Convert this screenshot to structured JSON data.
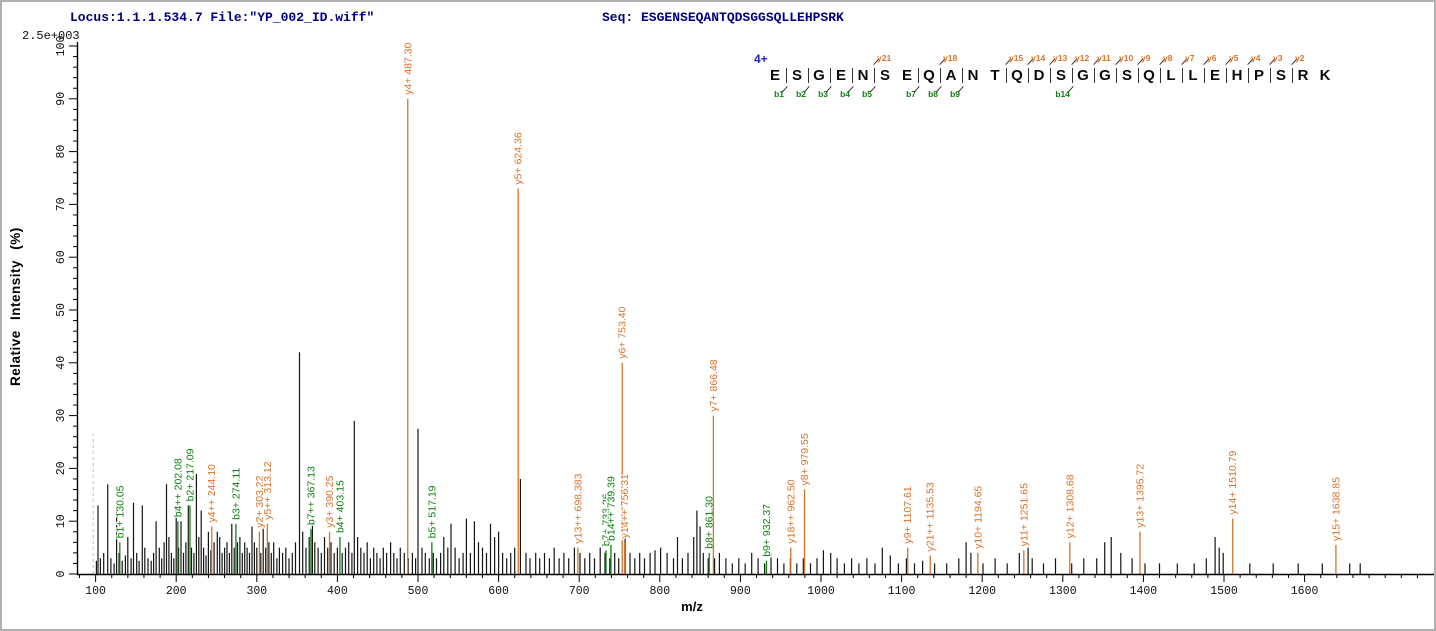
{
  "header": {
    "locus_file": "Locus:1.1.1.534.7 File:\"YP_002_ID.wiff\"",
    "seq": "Seq: ESGENSEQANTQDSGGSQLLEHPSRK",
    "max_intensity": "2.5e+003"
  },
  "colors": {
    "b_series": "#0f8012",
    "y_series": "#d9732b",
    "noise": "#141414",
    "header_text": "#000080",
    "charge_text": "#2424cc",
    "axis": "#000000",
    "dashed_marker": "#bcbcbc"
  },
  "sequence_panel": {
    "charge_label": "4+",
    "residues": [
      "E",
      "S",
      "G",
      "E",
      "N",
      "S",
      "E",
      "Q",
      "A",
      "N",
      "T",
      "Q",
      "D",
      "S",
      "G",
      "G",
      "S",
      "Q",
      "L",
      "L",
      "E",
      "H",
      "P",
      "S",
      "R",
      "K"
    ],
    "boundaries": [
      {
        "after": 1,
        "b": "b1"
      },
      {
        "after": 2,
        "b": "b2"
      },
      {
        "after": 3,
        "b": "b3"
      },
      {
        "after": 4,
        "b": "b4"
      },
      {
        "after": 5,
        "b": "b5",
        "y": "y21"
      },
      {
        "after": 7,
        "b": "b7"
      },
      {
        "after": 8,
        "b": "b8",
        "y": "y18"
      },
      {
        "after": 9,
        "b": "b9"
      },
      {
        "after": 11,
        "y": "y15"
      },
      {
        "after": 12,
        "y": "y14"
      },
      {
        "after": 13,
        "y": "y13"
      },
      {
        "after": 14,
        "b": "b14",
        "y": "y12"
      },
      {
        "after": 15,
        "y": "y11"
      },
      {
        "after": 16,
        "y": "y10"
      },
      {
        "after": 17,
        "y": "y9"
      },
      {
        "after": 18,
        "y": "y8"
      },
      {
        "after": 19,
        "y": "y7"
      },
      {
        "after": 20,
        "y": "y6"
      },
      {
        "after": 21,
        "y": "y5"
      },
      {
        "after": 22,
        "y": "y4"
      },
      {
        "after": 23,
        "y": "y3"
      },
      {
        "after": 24,
        "y": "y2"
      }
    ]
  },
  "chart_data": {
    "type": "bar",
    "kind": "ms2-fragment-spectrum",
    "title": "",
    "xlabel": "m/z",
    "ylabel": "Relative Intensity (%)",
    "xlim": [
      77,
      1758
    ],
    "ylim": [
      0,
      100
    ],
    "x_major_ticks": [
      100,
      200,
      300,
      400,
      500,
      600,
      700,
      800,
      900,
      1000,
      1100,
      1200,
      1300,
      1400,
      1500,
      1600
    ],
    "x_minor_step": 20,
    "y_major_ticks": [
      0,
      10,
      20,
      30,
      40,
      50,
      60,
      70,
      80,
      90,
      100
    ],
    "y_minor_step": 2,
    "grid": false,
    "legend": "none",
    "dashed_marker": {
      "mz": 97,
      "intensity": 26.5
    },
    "labeled_peaks": [
      {
        "label": "b1+ 130.05",
        "mz": 130.05,
        "intensity": 6,
        "series": "b"
      },
      {
        "label": "b4++ 202.08",
        "mz": 202.08,
        "intensity": 10,
        "series": "b"
      },
      {
        "label": "b2+ 217.09",
        "mz": 217.09,
        "intensity": 13,
        "series": "b"
      },
      {
        "label": "y4++ 244.10",
        "mz": 244.1,
        "intensity": 9,
        "series": "y"
      },
      {
        "label": "b3+ 274.11",
        "mz": 274.11,
        "intensity": 9.5,
        "series": "b"
      },
      {
        "label": "y2+ 303.22",
        "mz": 303.22,
        "intensity": 8,
        "series": "y"
      },
      {
        "label": "y5++ 313.12",
        "mz": 313.12,
        "intensity": 9.5,
        "series": "y"
      },
      {
        "label": "b7++ 367.13",
        "mz": 367.13,
        "intensity": 8.5,
        "series": "b"
      },
      {
        "label": "y3+ 390.25",
        "mz": 390.25,
        "intensity": 8,
        "series": "y"
      },
      {
        "label": "b4+ 403.15",
        "mz": 403.15,
        "intensity": 7,
        "series": "b"
      },
      {
        "label": "y4+ 487.30",
        "mz": 487.3,
        "intensity": 90,
        "series": "y"
      },
      {
        "label": "b5+ 517.19",
        "mz": 517.19,
        "intensity": 6,
        "series": "b"
      },
      {
        "label": "y5+ 624.36",
        "mz": 624.36,
        "intensity": 73,
        "series": "y"
      },
      {
        "label": "y13++ 698.383",
        "mz": 698.383,
        "intensity": 5,
        "series": "y"
      },
      {
        "label": "b7+ 733.26",
        "mz": 733.26,
        "intensity": 4.5,
        "series": "b"
      },
      {
        "label": "b14++ 739.39",
        "mz": 739.39,
        "intensity": 5.5,
        "series": "b"
      },
      {
        "label": "y6+ 753.40",
        "mz": 753.4,
        "intensity": 40,
        "series": "y"
      },
      {
        "label": "y14++ 756.31",
        "mz": 756.31,
        "intensity": 6,
        "series": "y"
      },
      {
        "label": "b8+ 861.30",
        "mz": 861.3,
        "intensity": 4,
        "series": "b"
      },
      {
        "label": "y7+ 866.48",
        "mz": 866.48,
        "intensity": 30,
        "series": "y"
      },
      {
        "label": "b9+ 932.37",
        "mz": 932.37,
        "intensity": 2.5,
        "series": "b"
      },
      {
        "label": "y18++ 962.50",
        "mz": 962.5,
        "intensity": 5,
        "series": "y"
      },
      {
        "label": "y8+ 979.55",
        "mz": 979.55,
        "intensity": 16,
        "series": "y"
      },
      {
        "label": "y9+ 1107.61",
        "mz": 1107.61,
        "intensity": 5,
        "series": "y"
      },
      {
        "label": "y21++ 1135.53",
        "mz": 1135.53,
        "intensity": 3.5,
        "series": "y"
      },
      {
        "label": "y10+ 1194.65",
        "mz": 1194.65,
        "intensity": 4,
        "series": "y"
      },
      {
        "label": "y11+ 1251.65",
        "mz": 1251.65,
        "intensity": 4.5,
        "series": "y"
      },
      {
        "label": "y12+ 1308.68",
        "mz": 1308.68,
        "intensity": 6,
        "series": "y"
      },
      {
        "label": "y13+ 1395.72",
        "mz": 1395.72,
        "intensity": 8,
        "series": "y"
      },
      {
        "label": "y14+ 1510.79",
        "mz": 1510.79,
        "intensity": 10.5,
        "series": "y"
      },
      {
        "label": "y15+ 1638.85",
        "mz": 1638.85,
        "intensity": 5.5,
        "series": "y"
      }
    ],
    "unlabeled_peaks": [
      [
        101,
        2.5
      ],
      [
        103,
        13
      ],
      [
        106,
        3
      ],
      [
        110,
        4
      ],
      [
        115,
        17
      ],
      [
        119,
        3
      ],
      [
        123,
        2
      ],
      [
        126,
        13
      ],
      [
        129,
        4
      ],
      [
        133,
        2.5
      ],
      [
        137,
        3.5
      ],
      [
        140,
        7
      ],
      [
        144,
        3
      ],
      [
        147,
        13.5
      ],
      [
        151,
        4
      ],
      [
        154,
        2.5
      ],
      [
        158,
        13
      ],
      [
        161,
        5
      ],
      [
        165,
        3
      ],
      [
        169,
        2.5
      ],
      [
        172,
        4
      ],
      [
        175,
        10
      ],
      [
        179,
        5
      ],
      [
        182,
        3
      ],
      [
        185,
        6
      ],
      [
        188,
        17
      ],
      [
        191,
        7
      ],
      [
        194,
        4
      ],
      [
        197,
        3
      ],
      [
        200,
        13
      ],
      [
        203,
        5
      ],
      [
        206,
        10
      ],
      [
        209,
        4
      ],
      [
        212,
        6
      ],
      [
        215,
        13
      ],
      [
        219,
        5
      ],
      [
        222,
        4
      ],
      [
        225,
        19
      ],
      [
        228,
        7
      ],
      [
        231,
        12
      ],
      [
        234,
        5
      ],
      [
        237,
        3.5
      ],
      [
        240,
        8
      ],
      [
        243,
        4.5
      ],
      [
        247,
        6
      ],
      [
        251,
        8
      ],
      [
        254,
        7
      ],
      [
        257,
        4
      ],
      [
        260,
        5
      ],
      [
        263,
        6
      ],
      [
        266,
        4
      ],
      [
        269,
        9.5
      ],
      [
        272,
        5
      ],
      [
        276,
        6
      ],
      [
        279,
        7
      ],
      [
        282,
        4
      ],
      [
        285,
        6
      ],
      [
        288,
        5
      ],
      [
        291,
        4
      ],
      [
        294,
        9
      ],
      [
        297,
        6
      ],
      [
        300,
        5
      ],
      [
        305,
        4
      ],
      [
        308,
        9
      ],
      [
        311,
        5
      ],
      [
        315,
        6
      ],
      [
        318,
        4
      ],
      [
        321,
        6
      ],
      [
        325,
        3
      ],
      [
        328,
        5
      ],
      [
        332,
        4
      ],
      [
        336,
        5
      ],
      [
        340,
        3
      ],
      [
        344,
        4
      ],
      [
        348,
        6
      ],
      [
        353,
        42
      ],
      [
        357,
        8
      ],
      [
        361,
        5
      ],
      [
        365,
        7
      ],
      [
        369,
        11
      ],
      [
        372,
        6
      ],
      [
        376,
        5
      ],
      [
        380,
        4
      ],
      [
        384,
        7
      ],
      [
        388,
        5
      ],
      [
        392,
        6
      ],
      [
        396,
        4
      ],
      [
        400,
        5
      ],
      [
        406,
        4
      ],
      [
        410,
        5
      ],
      [
        414,
        6
      ],
      [
        418,
        4
      ],
      [
        421,
        29
      ],
      [
        425,
        7
      ],
      [
        429,
        5
      ],
      [
        433,
        4
      ],
      [
        437,
        6
      ],
      [
        441,
        3
      ],
      [
        445,
        5
      ],
      [
        449,
        4
      ],
      [
        453,
        3
      ],
      [
        457,
        5
      ],
      [
        461,
        4
      ],
      [
        466,
        6
      ],
      [
        470,
        4
      ],
      [
        474,
        3
      ],
      [
        478,
        5
      ],
      [
        483,
        4
      ],
      [
        488,
        3
      ],
      [
        493,
        4
      ],
      [
        497,
        3
      ],
      [
        500,
        27.5
      ],
      [
        505,
        5
      ],
      [
        509,
        4
      ],
      [
        514,
        3
      ],
      [
        519,
        4
      ],
      [
        523,
        3
      ],
      [
        528,
        4
      ],
      [
        532,
        7
      ],
      [
        537,
        5
      ],
      [
        541,
        9.5
      ],
      [
        546,
        5
      ],
      [
        551,
        3
      ],
      [
        556,
        4
      ],
      [
        560,
        10.5
      ],
      [
        565,
        4
      ],
      [
        570,
        10
      ],
      [
        575,
        6
      ],
      [
        580,
        5
      ],
      [
        585,
        4
      ],
      [
        590,
        9.5
      ],
      [
        595,
        7
      ],
      [
        600,
        8
      ],
      [
        605,
        4
      ],
      [
        610,
        3
      ],
      [
        615,
        4
      ],
      [
        620,
        5
      ],
      [
        627,
        18
      ],
      [
        634,
        4
      ],
      [
        639,
        3
      ],
      [
        646,
        4
      ],
      [
        651,
        3
      ],
      [
        657,
        4
      ],
      [
        663,
        3
      ],
      [
        669,
        5
      ],
      [
        675,
        3
      ],
      [
        681,
        4
      ],
      [
        687,
        3
      ],
      [
        694,
        5
      ],
      [
        701,
        4
      ],
      [
        707,
        3
      ],
      [
        713,
        4
      ],
      [
        719,
        3
      ],
      [
        726,
        5
      ],
      [
        732,
        4
      ],
      [
        738,
        3
      ],
      [
        744,
        4
      ],
      [
        749,
        3
      ],
      [
        757,
        7
      ],
      [
        763,
        4
      ],
      [
        769,
        3
      ],
      [
        775,
        4
      ],
      [
        781,
        3
      ],
      [
        788,
        4
      ],
      [
        794,
        4.5
      ],
      [
        801,
        5
      ],
      [
        809,
        4
      ],
      [
        817,
        3
      ],
      [
        822,
        7
      ],
      [
        828,
        3
      ],
      [
        835,
        4
      ],
      [
        842,
        7
      ],
      [
        846,
        12
      ],
      [
        850,
        9
      ],
      [
        854,
        4
      ],
      [
        860,
        3
      ],
      [
        868,
        3
      ],
      [
        874,
        4
      ],
      [
        882,
        3
      ],
      [
        890,
        2
      ],
      [
        898,
        3
      ],
      [
        906,
        2
      ],
      [
        914,
        4
      ],
      [
        922,
        3
      ],
      [
        930,
        2
      ],
      [
        938,
        4
      ],
      [
        946,
        3
      ],
      [
        954,
        2
      ],
      [
        962,
        3
      ],
      [
        970,
        2
      ],
      [
        978,
        3
      ],
      [
        987,
        2
      ],
      [
        995,
        3
      ],
      [
        1003,
        4.5
      ],
      [
        1012,
        4
      ],
      [
        1020,
        3
      ],
      [
        1029,
        2
      ],
      [
        1038,
        3
      ],
      [
        1047,
        2
      ],
      [
        1057,
        3
      ],
      [
        1067,
        2
      ],
      [
        1076,
        5
      ],
      [
        1086,
        3.5
      ],
      [
        1096,
        2
      ],
      [
        1106,
        3
      ],
      [
        1116,
        2
      ],
      [
        1126,
        2.5
      ],
      [
        1141,
        2
      ],
      [
        1156,
        2
      ],
      [
        1171,
        3
      ],
      [
        1180,
        6
      ],
      [
        1186,
        4
      ],
      [
        1201,
        2
      ],
      [
        1216,
        3
      ],
      [
        1231,
        2
      ],
      [
        1246,
        4
      ],
      [
        1257,
        5
      ],
      [
        1262,
        3
      ],
      [
        1276,
        2
      ],
      [
        1291,
        3
      ],
      [
        1311,
        2
      ],
      [
        1326,
        3
      ],
      [
        1342,
        3
      ],
      [
        1352,
        6
      ],
      [
        1360,
        7
      ],
      [
        1372,
        4
      ],
      [
        1386,
        3
      ],
      [
        1402,
        2
      ],
      [
        1420,
        2
      ],
      [
        1442,
        2
      ],
      [
        1463,
        2
      ],
      [
        1478,
        3
      ],
      [
        1489,
        7
      ],
      [
        1494,
        5
      ],
      [
        1499,
        4
      ],
      [
        1532,
        2
      ],
      [
        1561,
        2
      ],
      [
        1592,
        2
      ],
      [
        1622,
        2
      ],
      [
        1656,
        2
      ],
      [
        1669,
        2
      ]
    ]
  }
}
